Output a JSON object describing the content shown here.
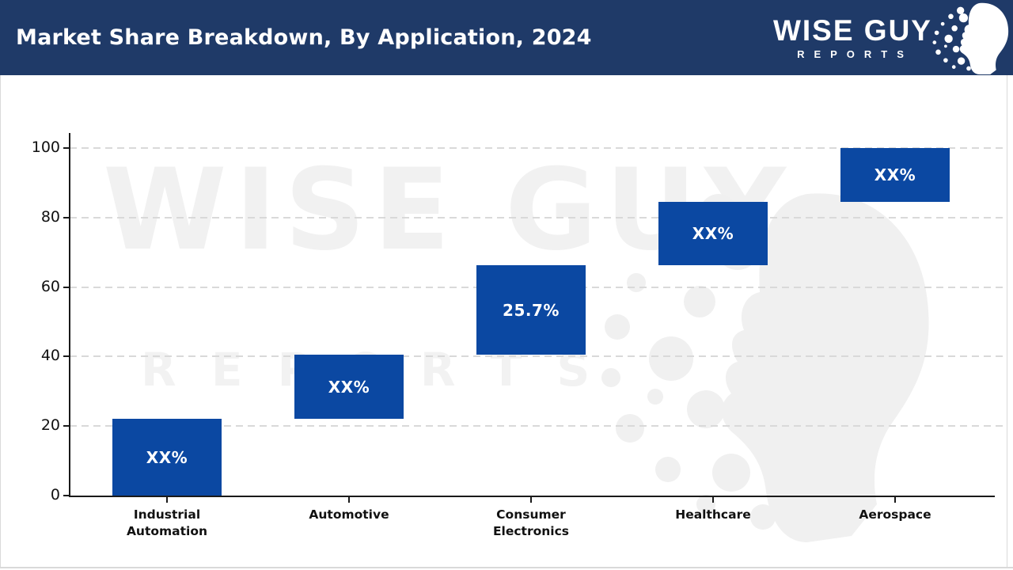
{
  "header": {
    "title": "Market Share Breakdown, By Application, 2024",
    "bg_color": "#1f3a68",
    "logo": {
      "brand": "WISE GUY",
      "sub": "REPORTS"
    }
  },
  "watermark": {
    "brand": "WISE GUY",
    "sub": "R E P O R T S"
  },
  "chart_data": {
    "type": "bar",
    "subtype": "waterfall-floating-bars",
    "title": "Market Share Breakdown, By Application, 2024",
    "xlabel": "",
    "ylabel": "",
    "ylim": [
      0,
      105
    ],
    "yticks": [
      0,
      20,
      40,
      60,
      80,
      100
    ],
    "grid": "horizontal-dashed",
    "legend": "none",
    "bar_color": "#0b48a2",
    "categories": [
      "Industrial\nAutomation",
      "Automotive",
      "Consumer\nElectronics",
      "Healthcare",
      "Aerospace"
    ],
    "bars": [
      {
        "category": "Industrial\nAutomation",
        "base": 0,
        "top": 22,
        "value_label": "XX%"
      },
      {
        "category": "Automotive",
        "base": 22,
        "top": 40.5,
        "value_label": "XX%"
      },
      {
        "category": "Consumer\nElectronics",
        "base": 40.5,
        "top": 66.2,
        "value_label": "25.7%"
      },
      {
        "category": "Healthcare",
        "base": 66.2,
        "top": 84.6,
        "value_label": "XX%"
      },
      {
        "category": "Aerospace",
        "base": 84.6,
        "top": 100,
        "value_label": "XX%"
      }
    ]
  },
  "colors": {
    "grid": "#d9d9d9",
    "axis": "#1a1a1a",
    "watermark": "#f0f0f0",
    "bar_label": "#ffffff",
    "tick_text": "#111111",
    "edge": "#d9d9d9"
  }
}
